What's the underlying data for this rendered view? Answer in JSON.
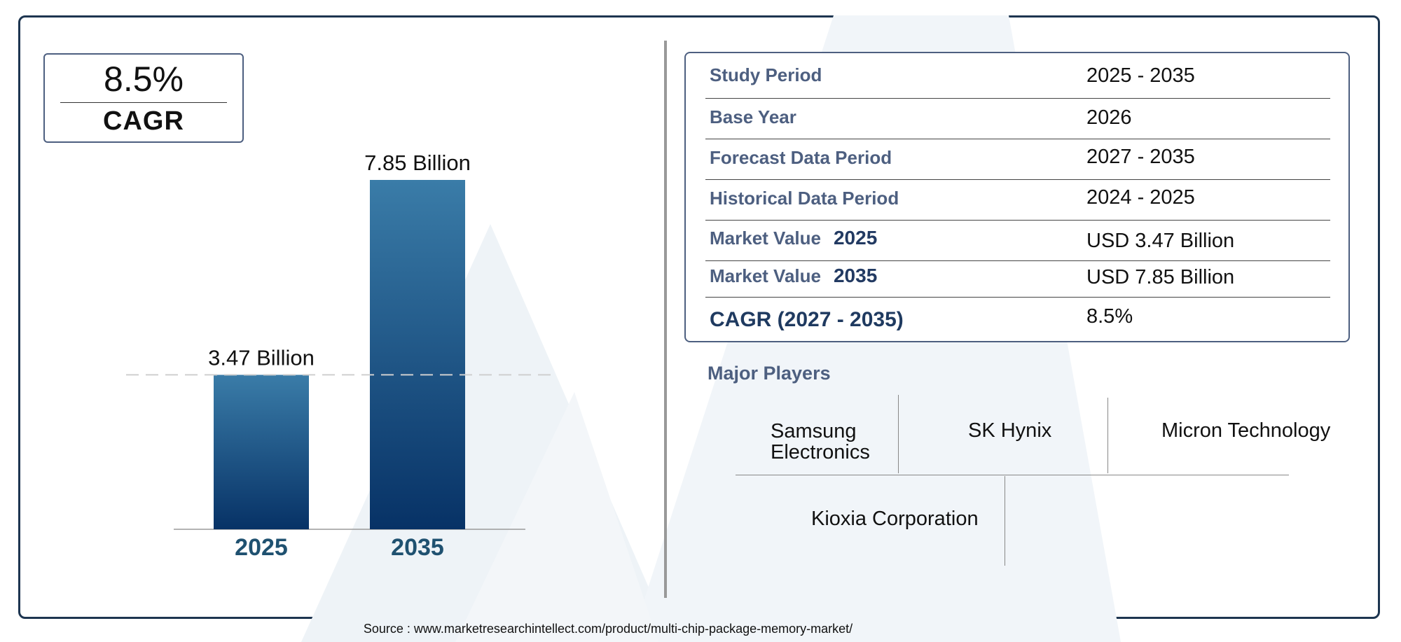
{
  "cagr_card": {
    "value": "8.5%",
    "label": "CAGR"
  },
  "chart_data": {
    "type": "bar",
    "categories": [
      "2025",
      "2035"
    ],
    "values": [
      3.47,
      7.85
    ],
    "data_labels": [
      "3.47 Billion",
      "7.85 Billion"
    ],
    "ylim": [
      0,
      8.59
    ],
    "reference_line": {
      "value": 3.47,
      "style": "dashed"
    },
    "colors": {
      "bar_top": "#3a7ca8",
      "bar_bottom": "#073266",
      "category_label": "#1f5170"
    }
  },
  "info_table": {
    "rows": [
      {
        "label": "Study Period",
        "year": "",
        "value": "2025 - 2035"
      },
      {
        "label": "Base Year",
        "year": "",
        "value": "2026"
      },
      {
        "label": "Forecast Data Period",
        "year": "",
        "value": "2027 - 2035"
      },
      {
        "label": "Historical Data Period",
        "year": "",
        "value": "2024 - 2025"
      },
      {
        "label": "Market Value",
        "year": "2025",
        "value": "USD 3.47 Billion"
      },
      {
        "label": "Market Value",
        "year": "2035",
        "value": "USD 7.85 Billion"
      },
      {
        "label": "CAGR (2027 - 2035)",
        "year": "",
        "value": "8.5%"
      }
    ]
  },
  "players": {
    "title": "Major Players",
    "items": [
      "Samsung\nElectronics",
      "SK Hynix",
      "Micron Technology",
      "Kioxia Corporation"
    ]
  },
  "source": "Source : www.marketresearchintellect.com/product/multi-chip-package-memory-market/"
}
